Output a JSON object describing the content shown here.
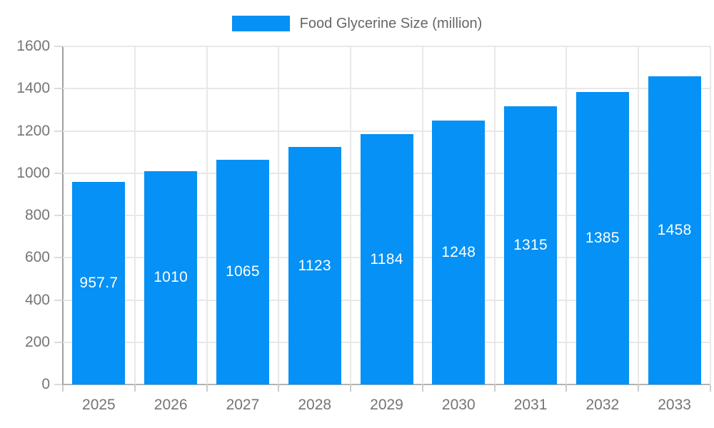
{
  "chart_data": {
    "type": "bar",
    "title": "Food Glycerine Size (million)",
    "legend_position": "top",
    "categories": [
      "2025",
      "2026",
      "2027",
      "2028",
      "2029",
      "2030",
      "2031",
      "2032",
      "2033"
    ],
    "values": [
      957.7,
      1010,
      1065,
      1123,
      1184,
      1248,
      1315,
      1385,
      1458
    ],
    "value_labels": [
      "957.7",
      "1010",
      "1065",
      "1123",
      "1184",
      "1248",
      "1315",
      "1385",
      "1458"
    ],
    "xlabel": "",
    "ylabel": "",
    "ylim": [
      0,
      1600
    ],
    "ytick_step": 200,
    "ytick_labels": [
      "0",
      "200",
      "400",
      "600",
      "800",
      "1000",
      "1200",
      "1400",
      "1600"
    ],
    "grid": "on",
    "colors": {
      "bar": "#0591f5",
      "bar_value_text": "#ffffff",
      "legend_text": "#666666",
      "axis_tick_text": "#757575",
      "gridline": "#e8e8e8",
      "y_axis_line": "#a0a0a0",
      "x_axis_line": "#b2b2b2",
      "background": "#ffffff"
    }
  }
}
